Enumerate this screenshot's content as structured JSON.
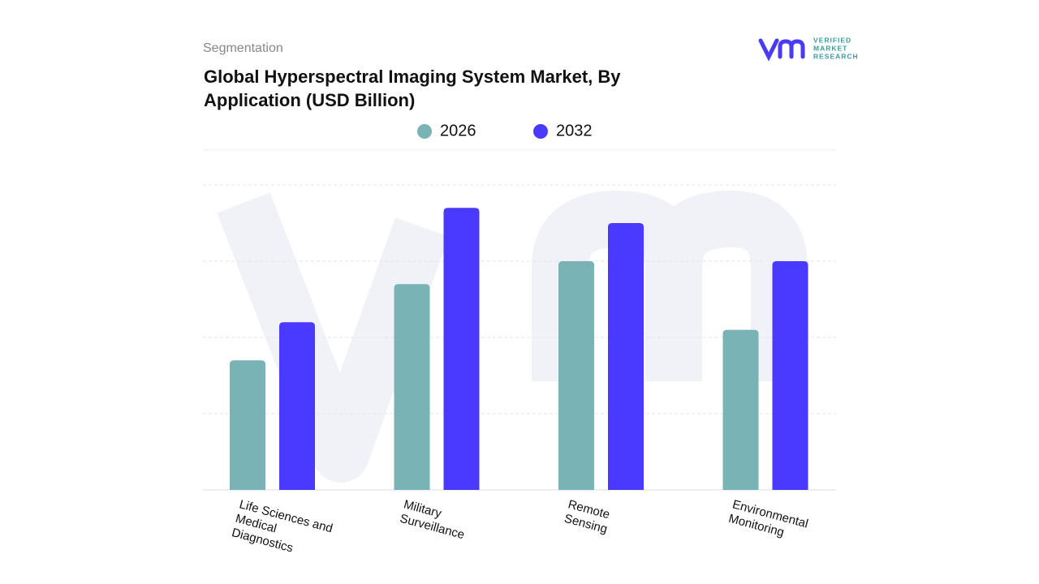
{
  "chart_data": {
    "type": "bar",
    "subtitle": "Segmentation",
    "title": "Global Hyperspectral Imaging System Market, By\nApplication (USD Billion)",
    "logo": {
      "line1": "VERIFIED",
      "line2": "MARKET",
      "line3": "RESEARCH"
    },
    "categories": [
      "Life Sciences and\nMedical\nDiagnostics",
      "Military\nSurveillance",
      "Remote\nSensing",
      "Environmental\nMonitoring"
    ],
    "series": [
      {
        "name": "2026",
        "color": "#7ab3b5",
        "values": [
          1.7,
          2.7,
          3.0,
          2.1
        ]
      },
      {
        "name": "2032",
        "color": "#4a3aff",
        "values": [
          2.2,
          3.7,
          3.5,
          3.0
        ]
      }
    ],
    "ylim": [
      0,
      4
    ],
    "yticks": [
      1,
      2,
      3,
      4
    ],
    "grid": true
  }
}
